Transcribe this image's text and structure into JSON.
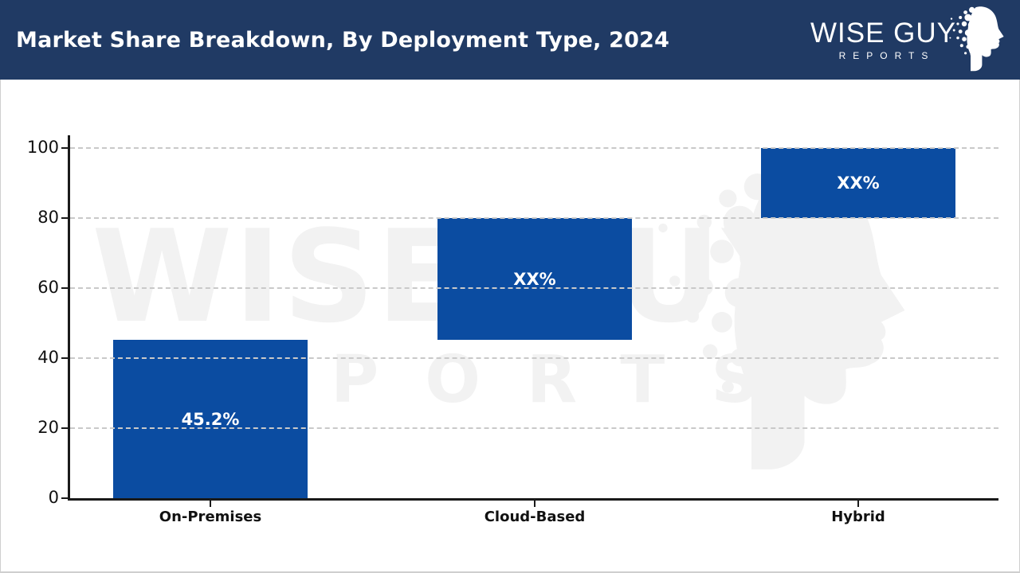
{
  "header": {
    "title": "Market Share Breakdown, By Deployment Type, 2024",
    "brand": {
      "name": "WISE GUY",
      "subtitle": "REPORTS"
    }
  },
  "icons": {
    "brand_head": "dotted-head-profile-icon",
    "watermark_head": "dotted-head-profile-icon"
  },
  "watermark": {
    "line1": "WISE GUY",
    "line2": "REPORTS"
  },
  "colors": {
    "header_bg": "#203a64",
    "bar": "#0b4ca1",
    "bar_label": "#ffffff",
    "gridline": "#c9c9c9",
    "axis": "#1a1a1a",
    "watermark": "#f2f2f2"
  },
  "chart_data": {
    "type": "bar",
    "subtype": "waterfall-floating-bars",
    "title": "Market Share Breakdown, By Deployment Type, 2024",
    "categories": [
      "On-Premises",
      "Cloud-Based",
      "Hybrid"
    ],
    "segments": [
      {
        "category": "On-Premises",
        "start": 0,
        "end": 45.2,
        "label": "45.2%"
      },
      {
        "category": "Cloud-Based",
        "start": 45.2,
        "end": 80,
        "label": "XX%"
      },
      {
        "category": "Hybrid",
        "start": 80,
        "end": 100,
        "label": "XX%"
      }
    ],
    "yticks": [
      0,
      20,
      40,
      60,
      80,
      100
    ],
    "ylim": [
      0,
      100
    ],
    "xlabel": "",
    "ylabel": "",
    "grid": "horizontal-dashed-over-bars",
    "legend": "none",
    "bar_color": "#0b4ca1",
    "label_color": "#ffffff"
  }
}
